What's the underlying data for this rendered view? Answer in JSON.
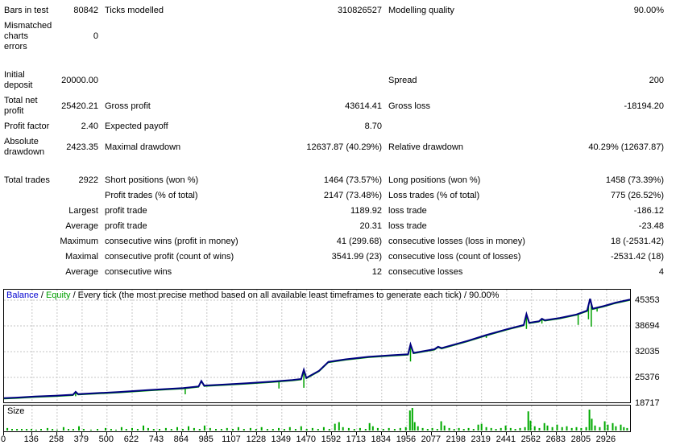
{
  "stats": {
    "rows": [
      [
        "Bars in test",
        "80842",
        "Ticks modelled",
        "310826527",
        "Modelling quality",
        "90.00%"
      ],
      [
        "Mismatched charts errors",
        "0",
        "",
        "",
        "",
        ""
      ],
      [
        "Initial deposit",
        "20000.00",
        "",
        "",
        "Spread",
        "200"
      ],
      [
        "Total net profit",
        "25420.21",
        "Gross profit",
        "43614.41",
        "Gross loss",
        "-18194.20"
      ],
      [
        "Profit factor",
        "2.40",
        "Expected payoff",
        "8.70",
        "",
        ""
      ],
      [
        "Absolute drawdown",
        "2423.35",
        "Maximal drawdown",
        "12637.87 (40.29%)",
        "Relative drawdown",
        "40.29% (12637.87)"
      ],
      [
        "Total trades",
        "2922",
        "Short positions (won %)",
        "1464 (73.57%)",
        "Long positions (won %)",
        "1458 (73.39%)"
      ],
      [
        "",
        "",
        "Profit trades (% of total)",
        "2147 (73.48%)",
        "Loss trades (% of total)",
        "775 (26.52%)"
      ],
      [
        "",
        "Largest",
        "profit trade",
        "1189.92",
        "loss trade",
        "-186.12"
      ],
      [
        "",
        "Average",
        "profit trade",
        "20.31",
        "loss trade",
        "-23.48"
      ],
      [
        "",
        "Maximum",
        "consecutive wins (profit in money)",
        "41 (299.68)",
        "consecutive losses (loss in money)",
        "18 (-2531.42)"
      ],
      [
        "",
        "Maximal",
        "consecutive profit (count of wins)",
        "3541.99 (23)",
        "consecutive loss (count of losses)",
        "-2531.42 (18)"
      ],
      [
        "",
        "Average",
        "consecutive wins",
        "12",
        "consecutive losses",
        "4"
      ]
    ]
  },
  "chart_data": {
    "type": "line",
    "legend": [
      {
        "text": "Balance",
        "color": "#0000D0"
      },
      {
        "text": " / ",
        "color": "#000000"
      },
      {
        "text": "Equity",
        "color": "#00A000"
      },
      {
        "text": " / Every tick (the most precise method based on all available least timeframes to generate each tick) / 90.00%",
        "color": "#000000"
      }
    ],
    "grid_color": "#C6C6C6",
    "x_ticks": [
      0,
      136,
      258,
      379,
      500,
      622,
      743,
      864,
      985,
      1107,
      1228,
      1349,
      1470,
      1592,
      1713,
      1834,
      1956,
      2077,
      2198,
      2319,
      2441,
      2562,
      2683,
      2805,
      2926
    ],
    "x_max": 3040,
    "y_ticks": [
      45353,
      38694,
      32035,
      25376,
      18717
    ],
    "series": [
      {
        "name": "Balance",
        "color": "#000080",
        "points": [
          [
            0,
            20000
          ],
          [
            60,
            20150
          ],
          [
            150,
            20420
          ],
          [
            250,
            20650
          ],
          [
            335,
            20900
          ],
          [
            348,
            21650
          ],
          [
            360,
            21050
          ],
          [
            470,
            21350
          ],
          [
            560,
            21600
          ],
          [
            700,
            22100
          ],
          [
            800,
            22400
          ],
          [
            870,
            22600
          ],
          [
            945,
            23050
          ],
          [
            958,
            24450
          ],
          [
            972,
            23250
          ],
          [
            1060,
            23500
          ],
          [
            1180,
            23850
          ],
          [
            1300,
            24300
          ],
          [
            1400,
            24700
          ],
          [
            1443,
            24950
          ],
          [
            1456,
            27350
          ],
          [
            1468,
            25250
          ],
          [
            1530,
            27100
          ],
          [
            1575,
            29400
          ],
          [
            1660,
            30050
          ],
          [
            1770,
            30700
          ],
          [
            1880,
            31100
          ],
          [
            1962,
            31350
          ],
          [
            1974,
            33900
          ],
          [
            1988,
            31700
          ],
          [
            2090,
            32650
          ],
          [
            2108,
            33300
          ],
          [
            2125,
            32950
          ],
          [
            2250,
            34800
          ],
          [
            2340,
            36300
          ],
          [
            2440,
            37800
          ],
          [
            2524,
            38950
          ],
          [
            2537,
            41750
          ],
          [
            2550,
            39500
          ],
          [
            2598,
            39900
          ],
          [
            2612,
            40550
          ],
          [
            2626,
            40150
          ],
          [
            2700,
            40750
          ],
          [
            2780,
            41650
          ],
          [
            2832,
            42650
          ],
          [
            2846,
            45700
          ],
          [
            2858,
            43150
          ],
          [
            2910,
            43800
          ],
          [
            2970,
            44700
          ],
          [
            3040,
            45520
          ]
        ]
      },
      {
        "name": "Equity",
        "color": "#00A000",
        "dips": [
          [
            348,
            20500
          ],
          [
            880,
            21000
          ],
          [
            1335,
            22500
          ],
          [
            1456,
            22700
          ],
          [
            1974,
            29500
          ],
          [
            2342,
            35600
          ],
          [
            2537,
            37900
          ],
          [
            2612,
            39300
          ],
          [
            2788,
            38950
          ],
          [
            2838,
            40400
          ],
          [
            2852,
            38500
          ],
          [
            2880,
            42400
          ]
        ]
      }
    ],
    "size_panel": {
      "label": "Size",
      "bar_color": "#00AA00",
      "bars": [
        [
          16,
          11
        ],
        [
          39,
          7
        ],
        [
          63,
          7
        ],
        [
          86,
          7
        ],
        [
          110,
          7
        ],
        [
          133,
          7
        ],
        [
          156,
          4
        ],
        [
          180,
          7
        ],
        [
          211,
          11
        ],
        [
          235,
          7
        ],
        [
          258,
          4
        ],
        [
          289,
          15
        ],
        [
          313,
          7
        ],
        [
          336,
          7
        ],
        [
          364,
          19
        ],
        [
          387,
          7
        ],
        [
          422,
          4
        ],
        [
          454,
          7
        ],
        [
          493,
          11
        ],
        [
          520,
          7
        ],
        [
          544,
          4
        ],
        [
          571,
          15
        ],
        [
          594,
          7
        ],
        [
          622,
          11
        ],
        [
          649,
          7
        ],
        [
          677,
          22
        ],
        [
          700,
          11
        ],
        [
          727,
          7
        ],
        [
          755,
          7
        ],
        [
          786,
          11
        ],
        [
          813,
          7
        ],
        [
          841,
          15
        ],
        [
          868,
          7
        ],
        [
          896,
          19
        ],
        [
          923,
          11
        ],
        [
          950,
          7
        ],
        [
          974,
          22
        ],
        [
          1001,
          11
        ],
        [
          1029,
          7
        ],
        [
          1056,
          7
        ],
        [
          1083,
          11
        ],
        [
          1111,
          7
        ],
        [
          1138,
          15
        ],
        [
          1165,
          7
        ],
        [
          1197,
          11
        ],
        [
          1224,
          7
        ],
        [
          1251,
          15
        ],
        [
          1279,
          7
        ],
        [
          1306,
          7
        ],
        [
          1334,
          11
        ],
        [
          1361,
          7
        ],
        [
          1388,
          15
        ],
        [
          1416,
          7
        ],
        [
          1443,
          19
        ],
        [
          1470,
          7
        ],
        [
          1498,
          11
        ],
        [
          1525,
          7
        ],
        [
          1553,
          15
        ],
        [
          1580,
          7
        ],
        [
          1607,
          30
        ],
        [
          1627,
          37
        ],
        [
          1646,
          15
        ],
        [
          1674,
          11
        ],
        [
          1701,
          7
        ],
        [
          1729,
          11
        ],
        [
          1756,
          7
        ],
        [
          1775,
          33
        ],
        [
          1791,
          19
        ],
        [
          1815,
          11
        ],
        [
          1842,
          7
        ],
        [
          1869,
          11
        ],
        [
          1897,
          7
        ],
        [
          1924,
          11
        ],
        [
          1951,
          15
        ],
        [
          1971,
          89
        ],
        [
          1983,
          100
        ],
        [
          1994,
          37
        ],
        [
          2010,
          19
        ],
        [
          2033,
          11
        ],
        [
          2057,
          7
        ],
        [
          2080,
          11
        ],
        [
          2104,
          7
        ],
        [
          2123,
          41
        ],
        [
          2139,
          22
        ],
        [
          2162,
          11
        ],
        [
          2186,
          7
        ],
        [
          2209,
          11
        ],
        [
          2233,
          7
        ],
        [
          2256,
          11
        ],
        [
          2280,
          7
        ],
        [
          2303,
          26
        ],
        [
          2319,
          30
        ],
        [
          2342,
          15
        ],
        [
          2366,
          11
        ],
        [
          2389,
          7
        ],
        [
          2413,
          11
        ],
        [
          2436,
          22
        ],
        [
          2460,
          11
        ],
        [
          2483,
          7
        ],
        [
          2506,
          11
        ],
        [
          2530,
          15
        ],
        [
          2546,
          85
        ],
        [
          2557,
          44
        ],
        [
          2577,
          19
        ],
        [
          2600,
          11
        ],
        [
          2624,
          33
        ],
        [
          2639,
          22
        ],
        [
          2663,
          15
        ],
        [
          2686,
          26
        ],
        [
          2710,
          15
        ],
        [
          2733,
          19
        ],
        [
          2757,
          11
        ],
        [
          2780,
          15
        ],
        [
          2803,
          11
        ],
        [
          2827,
          15
        ],
        [
          2843,
          93
        ],
        [
          2854,
          52
        ],
        [
          2870,
          22
        ],
        [
          2893,
          15
        ],
        [
          2917,
          41
        ],
        [
          2932,
          26
        ],
        [
          2956,
          33
        ],
        [
          2971,
          19
        ],
        [
          2995,
          26
        ],
        [
          3010,
          15
        ],
        [
          3026,
          11
        ]
      ]
    }
  }
}
